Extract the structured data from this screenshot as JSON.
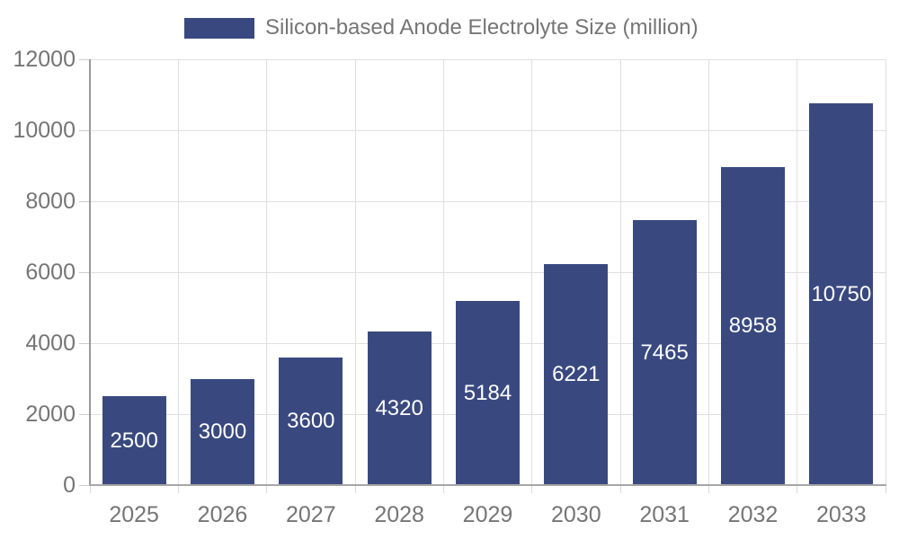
{
  "legend": {
    "label": "Silicon-based Anode Electrolyte Size (million)"
  },
  "chart_data": {
    "type": "bar",
    "title": "Silicon-based Anode Electrolyte Size (million)",
    "categories": [
      "2025",
      "2026",
      "2027",
      "2028",
      "2029",
      "2030",
      "2031",
      "2032",
      "2033"
    ],
    "values": [
      2500,
      3000,
      3600,
      4320,
      5184,
      6221,
      7465,
      8958,
      10750
    ],
    "xlabel": "",
    "ylabel": "",
    "ylim": [
      0,
      12000
    ],
    "yticks": [
      0,
      2000,
      4000,
      6000,
      8000,
      10000,
      12000
    ],
    "grid": true,
    "legend_position": "top",
    "bar_labels_visible": true
  },
  "colors": {
    "bar": "#394980",
    "bar_label": "#ffffff",
    "axis_line_y": "#999999",
    "axis_line_x": "#a6a6a6",
    "gridline": "#e0e0e0",
    "tick": "#cccccc",
    "axis_text": "#757575",
    "background": "#ffffff"
  }
}
